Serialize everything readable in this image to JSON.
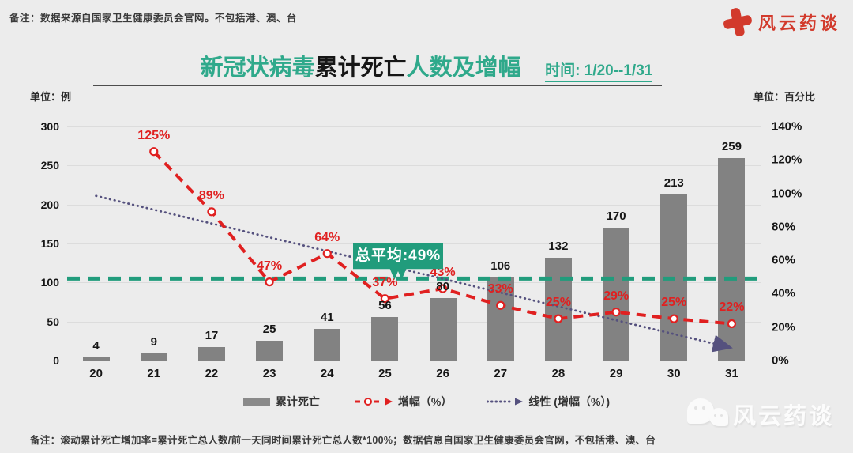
{
  "header": {
    "note": "备注：数据来源自国家卫生健康委员会官网。不包括港、澳、台",
    "brand": "风云药谈"
  },
  "title": {
    "accent1": "新冠状病毒",
    "dark": "累计死亡",
    "accent2": "人数及增幅",
    "time": "时间: 1/20--1/31"
  },
  "axes": {
    "left_unit": "单位：例",
    "right_unit": "单位：百分比"
  },
  "chart_data": {
    "type": "bar",
    "subtype": "combo-bar-line-dual-axis",
    "title": "新冠状病毒累计死亡人数及增幅",
    "time_range": "1/20--1/31",
    "categories": [
      "20",
      "21",
      "22",
      "23",
      "24",
      "25",
      "26",
      "27",
      "28",
      "29",
      "30",
      "31"
    ],
    "series": [
      {
        "name": "累计死亡",
        "type": "bar",
        "axis": "left",
        "color": "#828282",
        "values": [
          4,
          9,
          17,
          25,
          41,
          56,
          80,
          106,
          132,
          170,
          213,
          259
        ]
      },
      {
        "name": "增幅（%）",
        "type": "line",
        "axis": "right",
        "color": "#e02020",
        "style": "dashed",
        "marker": "open-circle",
        "values": [
          null,
          125,
          89,
          47,
          64,
          37,
          43,
          33,
          25,
          29,
          25,
          22
        ],
        "labels": [
          "",
          "125%",
          "89%",
          "47%",
          "64%",
          "37%",
          "43%",
          "33%",
          "25%",
          "29%",
          "25%",
          "22%"
        ]
      },
      {
        "name": "线性 (增幅（%）)",
        "type": "linear-trendline",
        "axis": "right",
        "color": "#55517e",
        "style": "dotted",
        "start_value": 98.5,
        "end_value": 8
      }
    ],
    "average_line": {
      "value": 49,
      "axis": "right",
      "color": "#219c7c",
      "style": "dashed",
      "label": "总平均:49%"
    },
    "left_axis": {
      "unit": "例",
      "min": 0,
      "max": 300,
      "step": 50,
      "ticks": [
        "0",
        "50",
        "100",
        "150",
        "200",
        "250",
        "300"
      ]
    },
    "right_axis": {
      "unit": "百分比",
      "min": 0,
      "max": 140,
      "step": 20,
      "ticks": [
        "0%",
        "20%",
        "40%",
        "60%",
        "80%",
        "100%",
        "120%",
        "140%"
      ]
    },
    "grid": "horizontal",
    "legend_position": "bottom"
  },
  "legend": {
    "bars": "累计死亡",
    "growth": "增幅（%）",
    "trend": "线性 (增幅（%）)"
  },
  "footer": {
    "note": "备注：滚动累计死亡增加率=累计死亡总人数/前一天同时间累计死亡总人数*100%；数据信息自国家卫生健康委员会官网，不包括港、澳、台",
    "watermark": "风云药谈"
  },
  "colors": {
    "accent_teal": "#2fa98b",
    "avg_green": "#219c7c",
    "growth_red": "#e02020",
    "trend_purple": "#55517e",
    "bar_gray": "#828282",
    "brand_red": "#d23a2c",
    "background": "#ececec"
  }
}
